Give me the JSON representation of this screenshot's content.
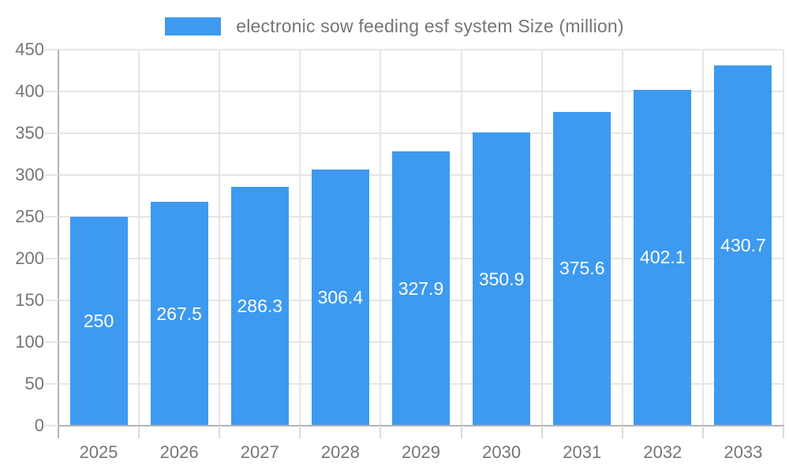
{
  "chart_data": {
    "type": "bar",
    "title": "",
    "legend": "electronic sow feeding esf system Size (million)",
    "legend_position": "top",
    "categories": [
      "2025",
      "2026",
      "2027",
      "2028",
      "2029",
      "2030",
      "2031",
      "2032",
      "2033"
    ],
    "series": [
      {
        "name": "electronic sow feeding esf system Size (million)",
        "values": [
          250,
          267.5,
          286.3,
          306.4,
          327.9,
          350.9,
          375.6,
          402.1,
          430.7
        ],
        "labels": [
          "250",
          "267.5",
          "286.3",
          "306.4",
          "327.9",
          "350.9",
          "375.6",
          "402.1",
          "430.7"
        ]
      }
    ],
    "xlabel": "",
    "ylabel": "",
    "ylim": [
      0,
      450
    ],
    "yticks": [
      0,
      50,
      100,
      150,
      200,
      250,
      300,
      350,
      400,
      450
    ],
    "grid": true,
    "colors": {
      "bar": "#3d9af0",
      "value_label": "#ffffff",
      "axis_text": "#757575",
      "gridline": "#e6e6e6",
      "axis_line": "#b3b3b3",
      "category_tick": "#d9d9d9"
    }
  }
}
